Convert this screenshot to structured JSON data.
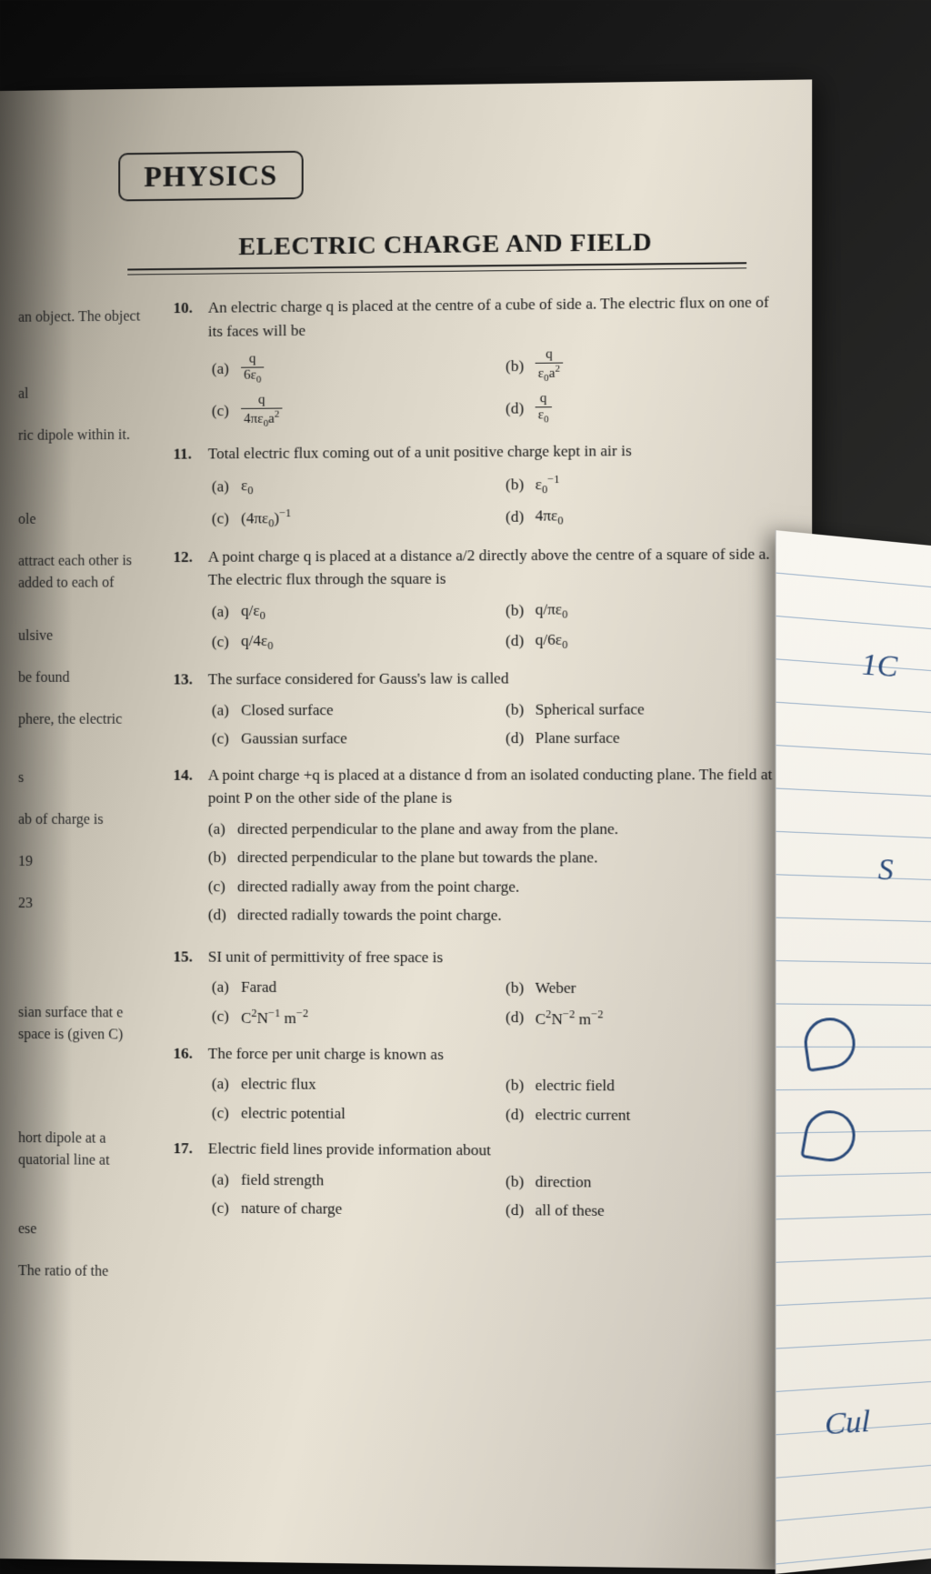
{
  "subject": "PHYSICS",
  "chapter": "ELECTRIC CHARGE AND FIELD",
  "left_fragments": [
    "an object. The object",
    "al",
    "ric dipole within it.",
    "ole",
    " attract each other is added to each of",
    "ulsive",
    " be found",
    "phere, the electric",
    "s",
    "ab of charge is",
    "19",
    "23",
    "sian surface that e space is (given C)",
    "hort dipole at a quatorial line at",
    "ese",
    "The ratio of the"
  ],
  "questions": [
    {
      "num": "10.",
      "text": "An electric charge q is placed at the centre of a cube of side a. The electric flux on one of its faces will be",
      "options": [
        {
          "l": "(a)",
          "html": "<span class='frac'><span class='num'>q</span><span class='den'>6ε<sub>0</sub></span></span>"
        },
        {
          "l": "(b)",
          "html": "<span class='frac'><span class='num'>q</span><span class='den'>ε<sub>0</sub>a<sup>2</sup></span></span>"
        },
        {
          "l": "(c)",
          "html": "<span class='frac'><span class='num'>q</span><span class='den'>4πε<sub>0</sub>a<sup>2</sup></span></span>"
        },
        {
          "l": "(d)",
          "html": "<span class='frac'><span class='num'>q</span><span class='den'>ε<sub>0</sub></span></span>"
        }
      ]
    },
    {
      "num": "11.",
      "text": "Total electric flux coming out of a unit positive charge kept in air is",
      "options": [
        {
          "l": "(a)",
          "html": "ε<sub>0</sub>"
        },
        {
          "l": "(b)",
          "html": "ε<sub>0</sub><sup>−1</sup>"
        },
        {
          "l": "(c)",
          "html": "(4πε<sub>0</sub>)<sup>−1</sup>"
        },
        {
          "l": "(d)",
          "html": "4πε<sub>0</sub>"
        }
      ]
    },
    {
      "num": "12.",
      "text": "A point charge q is placed at a distance a/2 directly above the centre of a square of side a. The electric flux through the square is",
      "options": [
        {
          "l": "(a)",
          "html": "q/ε<sub>0</sub>"
        },
        {
          "l": "(b)",
          "html": "q/πε<sub>0</sub>"
        },
        {
          "l": "(c)",
          "html": "q/4ε<sub>0</sub>"
        },
        {
          "l": "(d)",
          "html": "q/6ε<sub>0</sub>"
        }
      ]
    },
    {
      "num": "13.",
      "text": "The surface considered for Gauss's law is called",
      "options": [
        {
          "l": "(a)",
          "t": "Closed surface"
        },
        {
          "l": "(b)",
          "t": "Spherical surface"
        },
        {
          "l": "(c)",
          "t": "Gaussian surface"
        },
        {
          "l": "(d)",
          "t": "Plane surface"
        }
      ]
    },
    {
      "num": "14.",
      "text": "A point charge +q is placed at a distance d from an isolated conducting plane. The field at a point P on the other side of the plane is",
      "options_single": [
        {
          "l": "(a)",
          "t": "directed perpendicular to the plane and away from the plane."
        },
        {
          "l": "(b)",
          "t": "directed perpendicular to the plane but towards the plane."
        },
        {
          "l": "(c)",
          "t": "directed radially away from the point charge."
        },
        {
          "l": "(d)",
          "t": "directed radially towards the point charge."
        }
      ]
    },
    {
      "num": "15.",
      "text": "SI unit of permittivity of free space is",
      "options": [
        {
          "l": "(a)",
          "t": "Farad"
        },
        {
          "l": "(b)",
          "t": "Weber"
        },
        {
          "l": "(c)",
          "html": "C<sup>2</sup>N<sup>−1</sup> m<sup>−2</sup>"
        },
        {
          "l": "(d)",
          "html": "C<sup>2</sup>N<sup>−2</sup> m<sup>−2</sup>"
        }
      ]
    },
    {
      "num": "16.",
      "text": "The force per unit charge is known as",
      "options": [
        {
          "l": "(a)",
          "t": "electric flux"
        },
        {
          "l": "(b)",
          "t": "electric field"
        },
        {
          "l": "(c)",
          "t": "electric potential"
        },
        {
          "l": "(d)",
          "t": "electric current"
        }
      ]
    },
    {
      "num": "17.",
      "text": "Electric field lines provide information about",
      "options": [
        {
          "l": "(a)",
          "t": "field strength"
        },
        {
          "l": "(b)",
          "t": "direction"
        },
        {
          "l": "(c)",
          "t": "nature of charge"
        },
        {
          "l": "(d)",
          "t": "all of these"
        }
      ]
    }
  ],
  "handwriting": [
    "1C",
    "S",
    "Cul"
  ],
  "colors": {
    "page_bg": "#d8d2c4",
    "text": "#1a1a1a",
    "notebook_line": "#99b0c8",
    "ink": "#2a4a7a"
  }
}
